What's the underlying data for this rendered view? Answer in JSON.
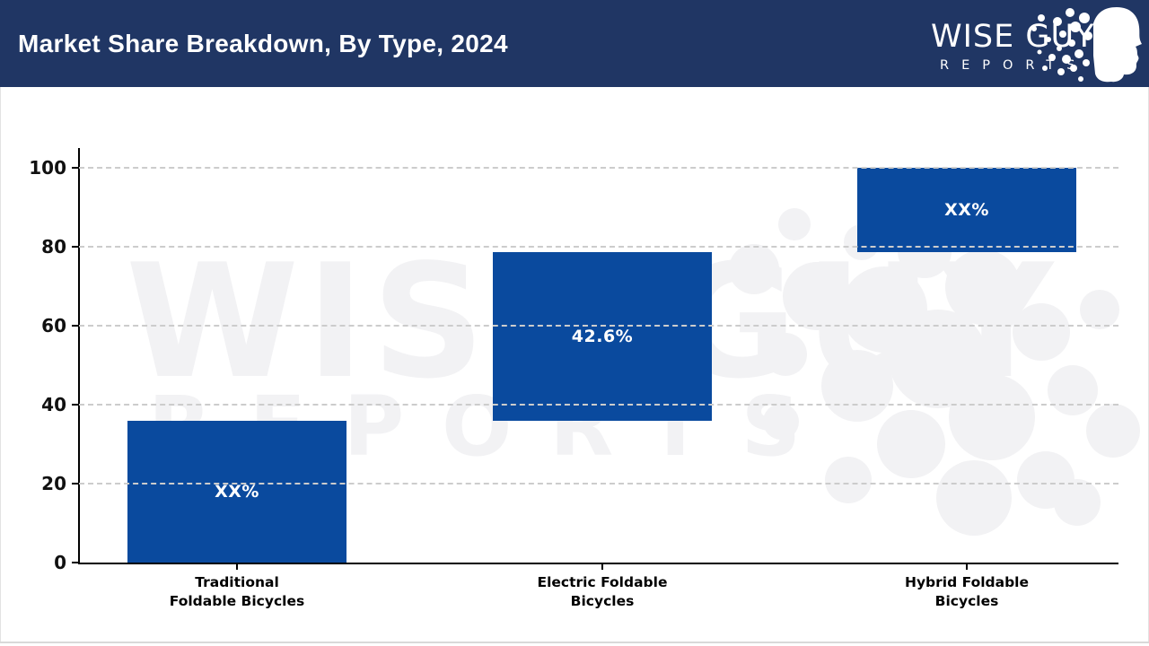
{
  "header": {
    "title": "Market Share Breakdown, By Type, 2024",
    "background_color": "#203664",
    "logo": {
      "line1": "WISE GUY",
      "line2": "REPORTS"
    }
  },
  "watermark": {
    "line1": "WISE GUY",
    "line2": "REPORTS"
  },
  "chart_data": {
    "type": "bar",
    "subtype": "floating-segment-waterfall",
    "title": "Market Share Breakdown, By Type, 2024",
    "categories": [
      [
        "Traditional",
        "Foldable Bicycles"
      ],
      [
        "Electric Foldable",
        "Bicycles"
      ],
      [
        "Hybrid Foldable",
        "Bicycles"
      ]
    ],
    "segments": [
      {
        "start": 0,
        "end": 36,
        "label": "XX%"
      },
      {
        "start": 36,
        "end": 78.6,
        "label": "42.6%",
        "value_pct": 42.6
      },
      {
        "start": 78.6,
        "end": 100,
        "label": "XX%"
      }
    ],
    "ylim": [
      0,
      100
    ],
    "yticks": [
      0,
      20,
      40,
      60,
      80,
      100
    ],
    "grid": {
      "axis": "y",
      "style": "dashed",
      "color": "#cccccc",
      "on_top_of_bars": true
    },
    "colors": {
      "bar": "#0A4A9E",
      "bar_label": "#ffffff",
      "axis": "#000000",
      "tick_label": "#111111"
    },
    "legend": "none"
  }
}
